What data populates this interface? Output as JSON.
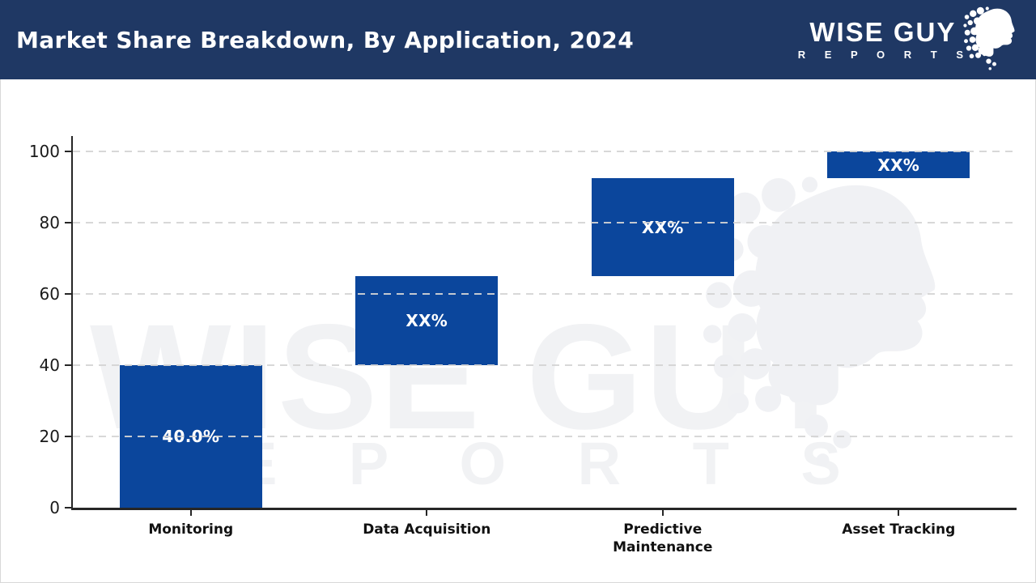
{
  "header": {
    "title": "Market Share Breakdown, By Application, 2024",
    "logo": {
      "name_top": "WISE GUY",
      "name_bottom": "R E P O R T S"
    }
  },
  "watermark": {
    "text_top": "WISE GUY",
    "text_bottom": "R E P O R T S"
  },
  "chart_data": {
    "type": "bar",
    "subtype": "waterfall",
    "title": "Market Share Breakdown, By Application, 2024",
    "categories": [
      "Monitoring",
      "Data Acquisition",
      "Predictive Maintenance",
      "Asset Tracking"
    ],
    "segments": [
      {
        "category": "Monitoring",
        "start": 0,
        "end": 40,
        "value": 40.0,
        "label": "40.0%"
      },
      {
        "category": "Data Acquisition",
        "start": 40,
        "end": 65,
        "value": 25.0,
        "label": "XX%"
      },
      {
        "category": "Predictive Maintenance",
        "start": 65,
        "end": 92.5,
        "value": 27.5,
        "label": "XX%"
      },
      {
        "category": "Asset Tracking",
        "start": 92.5,
        "end": 100,
        "value": 7.5,
        "label": "XX%"
      }
    ],
    "xlabel": "",
    "ylabel": "",
    "ylim": [
      0,
      100
    ],
    "yticks": [
      0,
      20,
      40,
      60,
      80,
      100
    ],
    "grid": "horizontal-dashed",
    "legend": "none",
    "bar_color": "#0b469c",
    "bar_label_color": "#ffffff",
    "axis_color": "#262626",
    "gridline_color": "#d4d4d4"
  }
}
